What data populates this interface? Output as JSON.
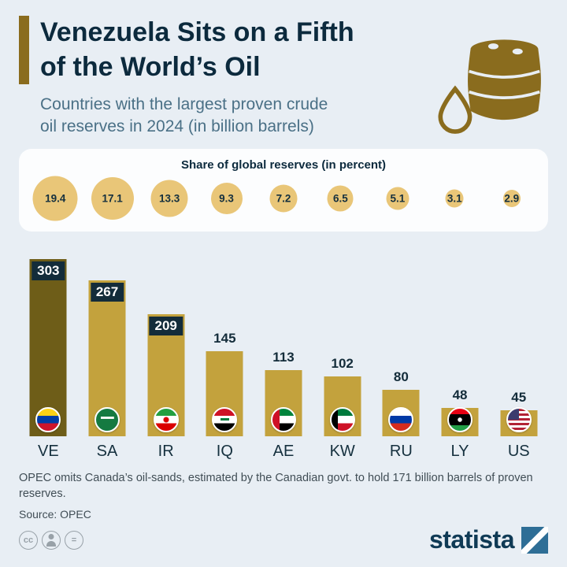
{
  "header": {
    "title_line1": "Venezuela Sits on a Fifth",
    "title_line2": "of the World’s Oil",
    "subtitle_line1": "Countries with the largest proven crude",
    "subtitle_line2": "oil reserves in 2024 (in billion barrels)"
  },
  "share_panel": {
    "title": "Share of global reserves (in percent)"
  },
  "chart_data": {
    "type": "bar",
    "title": "Venezuela Sits on a Fifth of the World’s Oil",
    "subtitle": "Countries with the largest proven crude oil reserves in 2024 (in billion barrels)",
    "categories": [
      "VE",
      "SA",
      "IR",
      "IQ",
      "AE",
      "KW",
      "RU",
      "LY",
      "US"
    ],
    "values": [
      303,
      267,
      209,
      145,
      113,
      102,
      80,
      48,
      45
    ],
    "share_percent": [
      19.4,
      17.1,
      13.3,
      9.3,
      7.2,
      6.5,
      5.1,
      3.1,
      2.9
    ],
    "unit": "billion barrels",
    "ylim": [
      0,
      310
    ],
    "bar_color": "#c3a23d",
    "highlight_color": "#6e5d18",
    "circle_color": "#e9c678",
    "legend_position": "top-panel"
  },
  "footer": {
    "note": "OPEC omits Canada’s oil-sands, estimated by the Canadian govt. to hold 171 billion barrels of proven reserves.",
    "source": "Source: OPEC",
    "brand": "statista",
    "cc_glyph": "cc",
    "equals_glyph": "="
  }
}
